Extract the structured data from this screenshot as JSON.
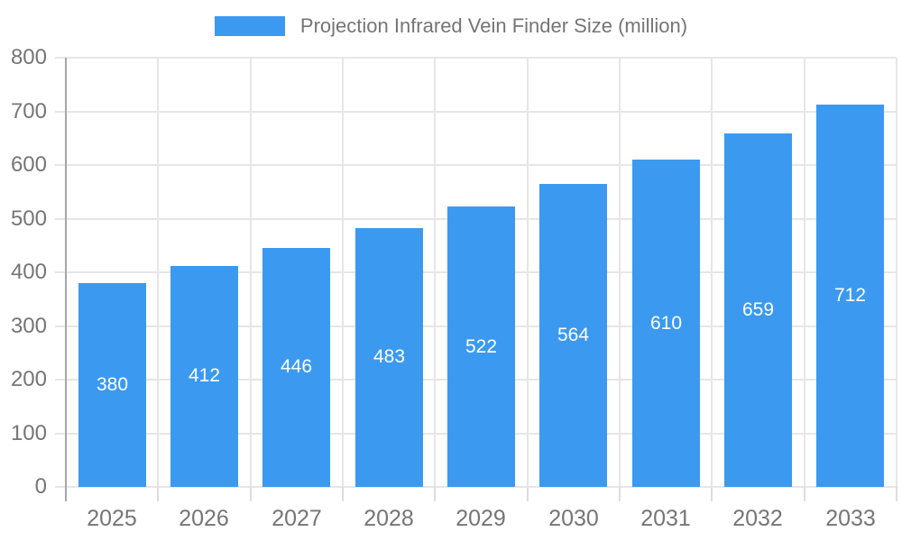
{
  "legend": {
    "label": "Projection Infrared Vein Finder Size (million)"
  },
  "chart_data": {
    "type": "bar",
    "title": "Projection Infrared Vein Finder Size (million)",
    "categories": [
      "2025",
      "2026",
      "2027",
      "2028",
      "2029",
      "2030",
      "2031",
      "2032",
      "2033"
    ],
    "values": [
      380,
      412,
      446,
      483,
      522,
      564,
      610,
      659,
      712
    ],
    "series": [
      {
        "name": "Projection Infrared Vein Finder Size (million)",
        "values": [
          380,
          412,
          446,
          483,
          522,
          564,
          610,
          659,
          712
        ]
      }
    ],
    "bar_value_labels": [
      "380",
      "412",
      "446",
      "483",
      "522",
      "564",
      "610",
      "659",
      "712"
    ],
    "xlabel": "",
    "ylabel": "",
    "ylim": [
      0,
      800
    ],
    "ytick_step": 100,
    "yticks": [
      0,
      100,
      200,
      300,
      400,
      500,
      600,
      700,
      800
    ],
    "grid": true,
    "legend_position": "top-center",
    "bar_labels_position": "inside-center",
    "colors": {
      "bar": "#3B99F0",
      "bar_label_text": "#FFFFFF",
      "axis_text": "#757575",
      "gridline": "#E6E6E6",
      "axis_line": "#A6A6A6",
      "below_axis_tick": "#DDDDDD",
      "background": "#FFFFFF"
    }
  }
}
